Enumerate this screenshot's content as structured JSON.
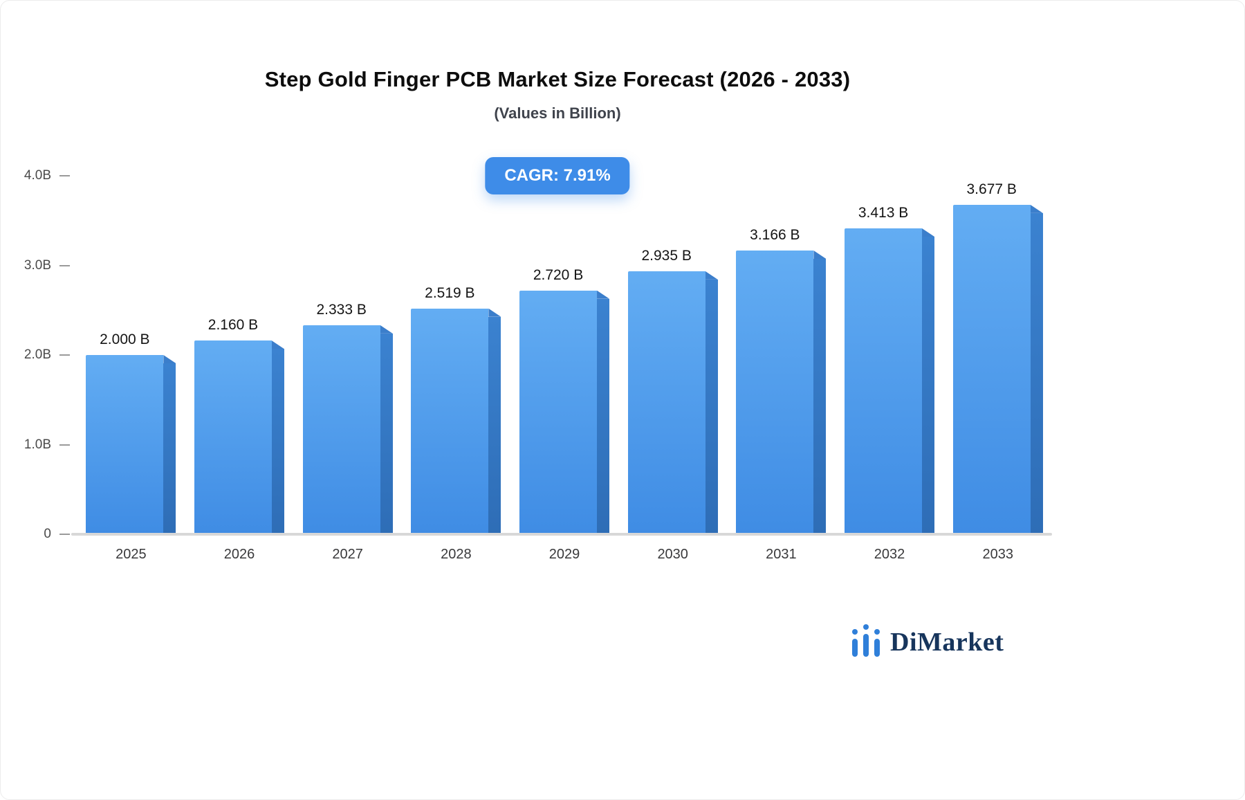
{
  "header": {
    "title": "Step Gold Finger PCB Market Size Forecast (2026 - 2033)",
    "subtitle": "(Values in Billion)",
    "cagr_badge": "CAGR: 7.91%"
  },
  "logo": {
    "text": "DiMarket",
    "icon": "bar-chart-icon"
  },
  "colors": {
    "bar_top": "#63adf3",
    "bar_bottom": "#3f8ce4",
    "bar_side": "#2e6db6",
    "bar_cut": "#3b7ecb",
    "badge_bg": "#3e8ce8",
    "logo_navy": "#17355c",
    "logo_blue": "#2f7fd9",
    "axis_line": "#d8d8d8"
  },
  "chart_data": {
    "type": "bar",
    "title": "Step Gold Finger PCB Market Size Forecast (2026 - 2033)",
    "subtitle": "(Values in Billion)",
    "annotation": "CAGR: 7.91%",
    "categories": [
      "2025",
      "2026",
      "2027",
      "2028",
      "2029",
      "2030",
      "2031",
      "2032",
      "2033"
    ],
    "values": [
      2.0,
      2.16,
      2.333,
      2.519,
      2.72,
      2.935,
      3.166,
      3.413,
      3.677
    ],
    "labels": [
      "2.000 B",
      "2.160 B",
      "2.333 B",
      "2.519 B",
      "2.720 B",
      "2.935 B",
      "3.166 B",
      "3.413 B",
      "3.677 B"
    ],
    "xlabel": "",
    "ylabel": "",
    "ylim": [
      0,
      4.0
    ],
    "grid": false,
    "legend": false,
    "yticks": [
      {
        "label": "4.0B",
        "value": 4.0
      },
      {
        "label": "3.0B",
        "value": 3.0
      },
      {
        "label": "2.0B",
        "value": 2.0
      },
      {
        "label": "1.0B",
        "value": 1.0
      },
      {
        "label": "0",
        "value": 0.0
      }
    ]
  }
}
